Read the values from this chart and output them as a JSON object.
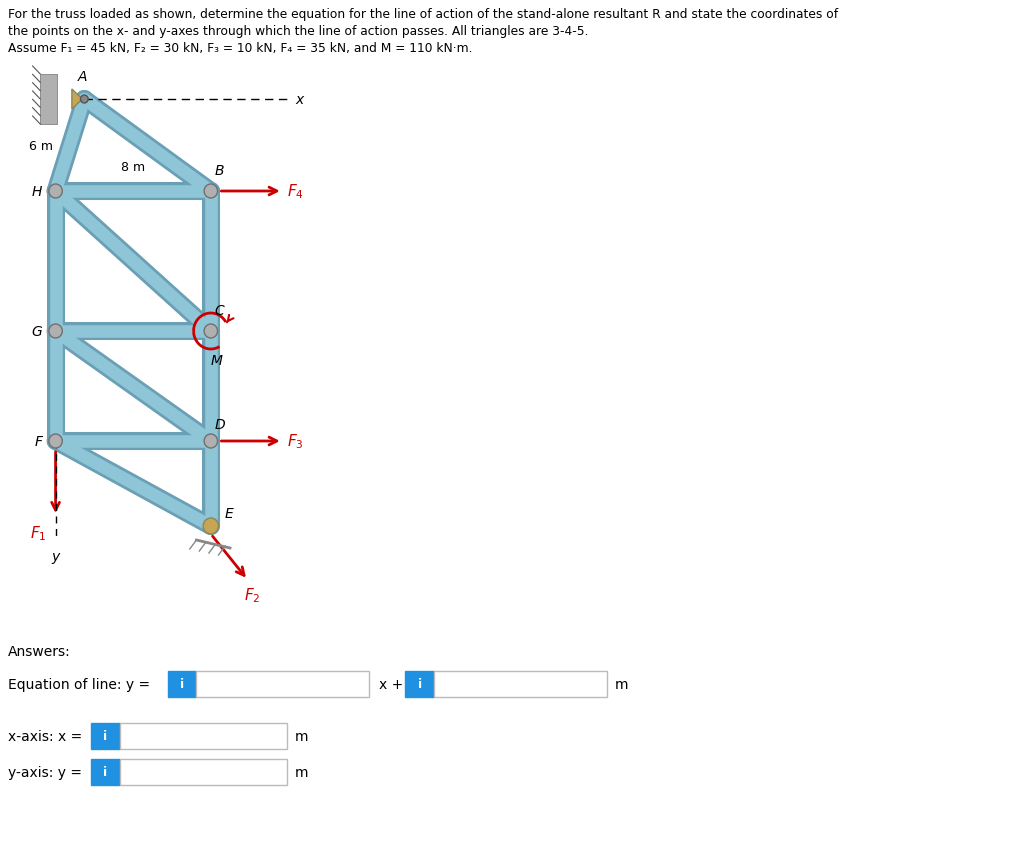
{
  "bg_color": "#ffffff",
  "truss_color": "#8ec6d8",
  "truss_edge_color": "#6a9fb5",
  "joint_gray_color": "#b0b0b0",
  "joint_gray_edge": "#707070",
  "joint_gold_color": "#c8a455",
  "joint_gold_edge": "#888855",
  "wall_color": "#b0b0b0",
  "wall_edge": "#707070",
  "pin_color": "#c8a455",
  "ground_color": "#909090",
  "arrow_color": "#cc0000",
  "text_color": "#000000",
  "btn_blue": "#2090e0",
  "btn_text": "#ffffff",
  "box_edge": "#bbbbbb",
  "title_line1": "For the truss loaded as shown, determine the equation for the line of action of the stand-alone resultant R and state the coordinates of",
  "title_line2": "the points on the x- and y-axes through which the line of action passes. All triangles are 3-4-5.",
  "title_line3": "Assume F₁ = 45 kN, F₂ = 30 kN, F₃ = 10 kN, F₄ = 35 kN, and M = 110 kN·m.",
  "answers_header": "Answers:",
  "eq_label": "Equation of line: y =",
  "xplus_label": "x +",
  "m_label": "m",
  "xax_label": "x-axis: x =",
  "yax_label": "y-axis: y =",
  "node_label_A": "A",
  "node_label_H": "H",
  "node_label_G": "G",
  "node_label_F": "F",
  "node_label_B": "B",
  "node_label_C": "C",
  "node_label_D": "D",
  "node_label_E": "E",
  "dim_6m": "6 m",
  "dim_8m": "8 m",
  "label_M": "M",
  "label_x": "x",
  "label_y": "y",
  "label_F1": "F₁",
  "label_F2": "F₂",
  "label_F3": "F₃",
  "label_F4": "F₄"
}
